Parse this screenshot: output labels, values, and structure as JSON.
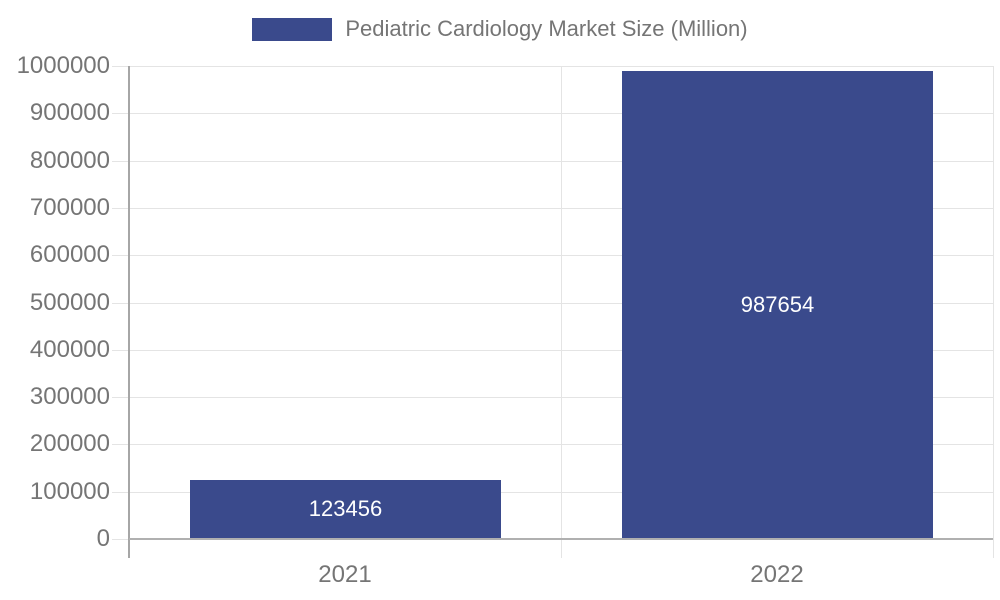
{
  "chart_data": {
    "type": "bar",
    "title": "Pediatric Cardiology Market Size (Million)",
    "legend": [
      "Pediatric Cardiology Market Size (Million)"
    ],
    "legend_position": "top",
    "categories": [
      "2021",
      "2022"
    ],
    "series": [
      {
        "name": "Pediatric Cardiology Market Size (Million)",
        "values": [
          123456,
          987654
        ]
      }
    ],
    "bar_value_labels": [
      "123456",
      "987654"
    ],
    "xlabel": "",
    "ylabel": "",
    "ylim": [
      0,
      1000000
    ],
    "ytick_step": 100000,
    "ytick_labels": [
      "0",
      "100000",
      "200000",
      "300000",
      "400000",
      "500000",
      "600000",
      "700000",
      "800000",
      "900000",
      "1000000"
    ],
    "grid": true,
    "colors": {
      "bar": "#3A4A8C",
      "grid_line": "#e4e4e4",
      "axis_line": "#a6a6a6",
      "baseline": "#b0b0b0",
      "tick_text": "#757575",
      "title_text": "#757575",
      "value_label": "#ffffff",
      "background": "#ffffff"
    }
  }
}
